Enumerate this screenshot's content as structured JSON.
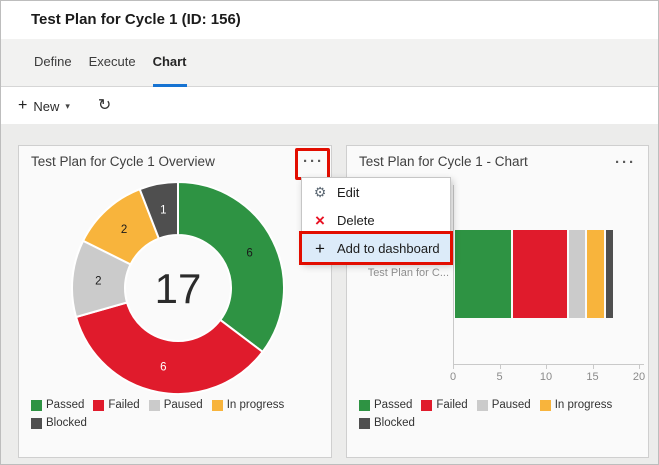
{
  "header": {
    "title": "Test Plan for Cycle 1 (ID: 156)"
  },
  "tabs": [
    {
      "label": "Define",
      "active": false
    },
    {
      "label": "Execute",
      "active": false
    },
    {
      "label": "Chart",
      "active": true
    }
  ],
  "toolbar": {
    "new_label": "New"
  },
  "icons": {
    "plus": "+",
    "chevron_down": "▾",
    "refresh": "↻",
    "ellipsis": "···",
    "gear": "⚙",
    "delete_x": "×"
  },
  "widgets": {
    "overview": {
      "title": "Test Plan for Cycle 1 Overview"
    },
    "chart": {
      "title": "Test Plan for Cycle 1 - Chart"
    }
  },
  "context_menu": {
    "items": [
      {
        "icon": "gear-icon",
        "label": "Edit",
        "highlighted": false
      },
      {
        "icon": "delete-x-icon",
        "label": "Delete",
        "highlighted": false
      },
      {
        "icon": "plus-icon",
        "label": "Add to dashboard",
        "highlighted": true
      }
    ]
  },
  "colors": {
    "annotation_red": "#E20D00",
    "highlight_blue_bg": "#DCEBF9",
    "tab_accent_blue": "#1673D2",
    "delete_x_red": "#E81123"
  },
  "chart_data": [
    {
      "type": "pie",
      "subtype": "donut",
      "title": "Test Plan for Cycle 1 Overview",
      "total_label": "17",
      "slices": [
        {
          "label": "Passed",
          "value": 6,
          "color": "#2E9343",
          "label_color": "#1A1A1A"
        },
        {
          "label": "Failed",
          "value": 6,
          "color": "#E01B2C",
          "label_color": "#FFFFFF"
        },
        {
          "label": "Paused",
          "value": 2,
          "color": "#CBCBCB",
          "label_color": "#1A1A1A"
        },
        {
          "label": "In progress",
          "value": 2,
          "color": "#F8B43C",
          "label_color": "#1A1A1A"
        },
        {
          "label": "Blocked",
          "value": 1,
          "color": "#4F4F4F",
          "label_color": "#FFFFFF"
        }
      ],
      "start_angle_deg": 0,
      "legend_position": "bottom"
    },
    {
      "type": "bar",
      "orientation": "horizontal",
      "stacked": true,
      "title": "Test Plan for Cycle 1 - Chart",
      "categories": [
        "Test Plan for C..."
      ],
      "series": [
        {
          "name": "Passed",
          "values": [
            6
          ],
          "color": "#2E9343"
        },
        {
          "name": "Failed",
          "values": [
            6
          ],
          "color": "#E01B2C"
        },
        {
          "name": "Paused",
          "values": [
            2
          ],
          "color": "#CBCBCB"
        },
        {
          "name": "In progress",
          "values": [
            2
          ],
          "color": "#F8B43C"
        },
        {
          "name": "Blocked",
          "values": [
            1
          ],
          "color": "#4F4F4F"
        }
      ],
      "xlim": [
        0,
        20
      ],
      "xticks": [
        0,
        5,
        10,
        15,
        20
      ],
      "legend_position": "bottom"
    }
  ]
}
